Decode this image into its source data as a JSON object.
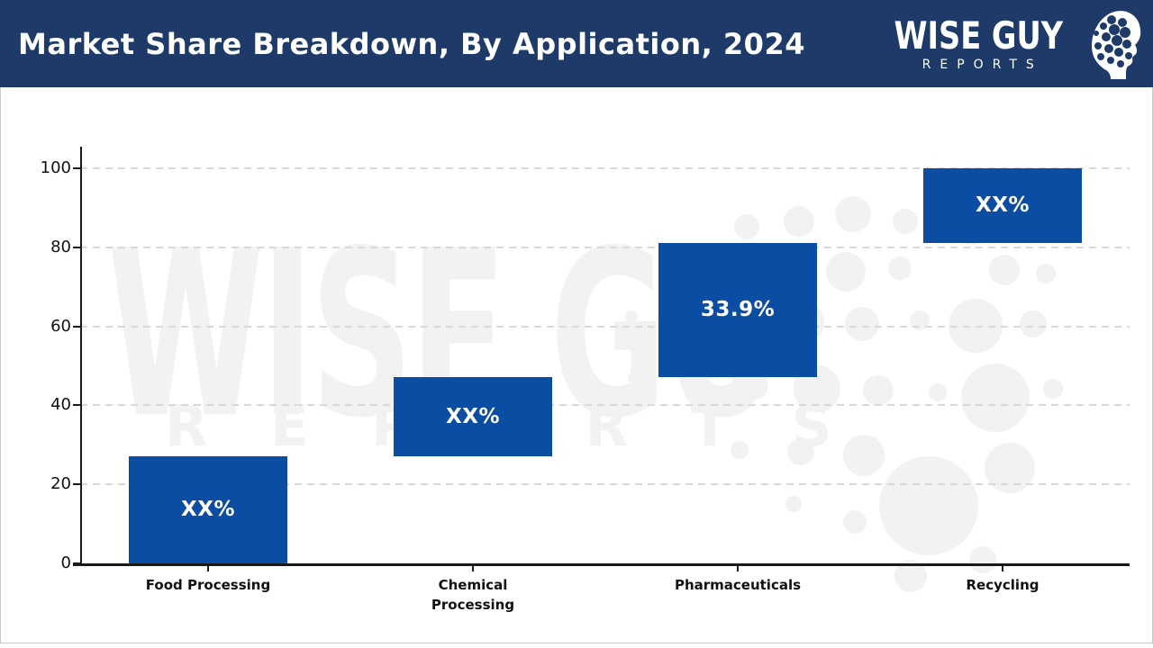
{
  "header": {
    "logo": {
      "line1": "WISE GUY",
      "line2": "REPORTS"
    }
  },
  "watermark": {
    "line1": "WISE GU",
    "line2": "R E P O R T S"
  },
  "colors": {
    "header_bg": "#1e3a68",
    "bar": "#0b4da2",
    "grid": "#d9d9d9",
    "axis": "#1a1a1a",
    "bar_label": "#ffffff",
    "category_label": "#111111",
    "watermark": "#f2f2f2"
  },
  "chart_data": {
    "type": "bar",
    "subtype": "waterfall",
    "title": "Market Share Breakdown, By Application, 2024",
    "categories": [
      "Food Processing",
      "Chemical Processing",
      "Pharmaceuticals",
      "Recycling"
    ],
    "segments": [
      {
        "category": "Food Processing",
        "start": 0,
        "end": 27.2,
        "label": "XX%"
      },
      {
        "category": "Chemical Processing",
        "start": 27.2,
        "end": 47.2,
        "label": "XX%"
      },
      {
        "category": "Pharmaceuticals",
        "start": 47.2,
        "end": 81.1,
        "label": "33.9%",
        "value": 33.9
      },
      {
        "category": "Recycling",
        "start": 81.1,
        "end": 100,
        "label": "XX%"
      }
    ],
    "ylim": [
      0,
      100
    ],
    "yticks": [
      0,
      20,
      40,
      60,
      80,
      100
    ],
    "grid": "dashed-horizontal",
    "legend": false,
    "xlabel": "",
    "ylabel": ""
  }
}
